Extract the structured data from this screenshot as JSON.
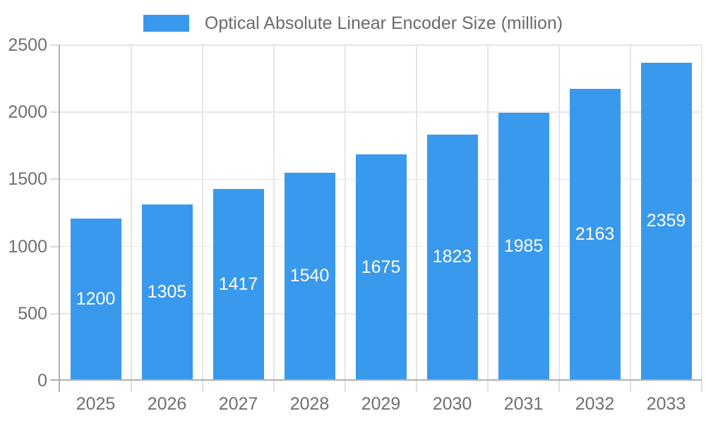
{
  "chart_data": {
    "type": "bar",
    "title": "",
    "series_name": "Optical Absolute Linear Encoder Size (million)",
    "categories": [
      "2025",
      "2026",
      "2027",
      "2028",
      "2029",
      "2030",
      "2031",
      "2032",
      "2033"
    ],
    "values": [
      1200,
      1305,
      1417,
      1540,
      1675,
      1823,
      1985,
      2163,
      2359
    ],
    "xlabel": "",
    "ylabel": "",
    "ylim": [
      0,
      2500
    ],
    "y_ticks": [
      0,
      500,
      1000,
      1500,
      2000,
      2500
    ],
    "grid": true,
    "legend_position": "top",
    "bar_color": "#3999EC",
    "value_label_color": "#FFFFFF",
    "axis_label_color": "#707070",
    "legend_text_color": "#6B6B6B",
    "grid_color": "#E6E6E6",
    "axis_line_color": "#B0B0B0",
    "y_tick_color": "#D9D9D9",
    "x_tick_color": "#E0E0E0"
  }
}
